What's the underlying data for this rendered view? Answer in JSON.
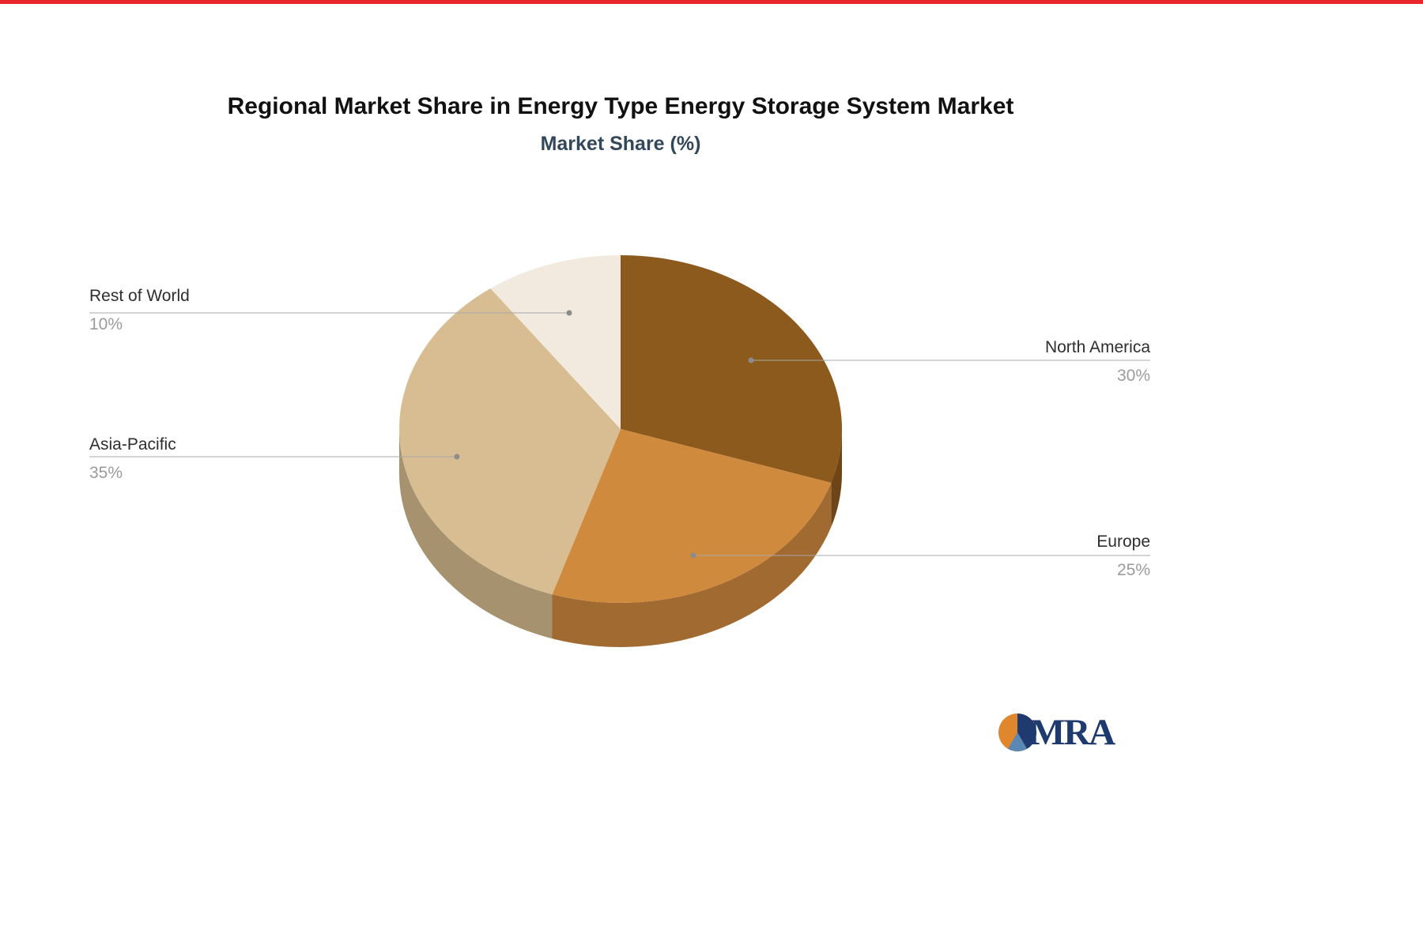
{
  "page": {
    "top_bar_color": "#e9262b",
    "background_color": "#ffffff"
  },
  "chart_data": {
    "type": "pie",
    "style": "3d",
    "title": "Regional Market Share in Energy Type Energy Storage System Market",
    "subtitle": "Market Share (%)",
    "unit": "%",
    "start_angle_deg": -90,
    "direction": "clockwise",
    "legend_position": "none",
    "labels_layout": "callouts-with-leader-lines",
    "slices": [
      {
        "label": "North America",
        "value": 30,
        "pct_label": "30%",
        "color": "#8d5a1d"
      },
      {
        "label": "Europe",
        "value": 25,
        "pct_label": "25%",
        "color": "#d08a3e"
      },
      {
        "label": "Asia-Pacific",
        "value": 35,
        "pct_label": "35%",
        "color": "#d9bd92"
      },
      {
        "label": "Rest of World",
        "value": 10,
        "pct_label": "10%",
        "color": "#f2e9df"
      }
    ]
  },
  "logo": {
    "text": "MRA",
    "text_color": "#1e3a6e",
    "icon_colors": {
      "orange": "#e0862c",
      "navy": "#1e3a6e",
      "blue": "#5b87b5"
    }
  }
}
